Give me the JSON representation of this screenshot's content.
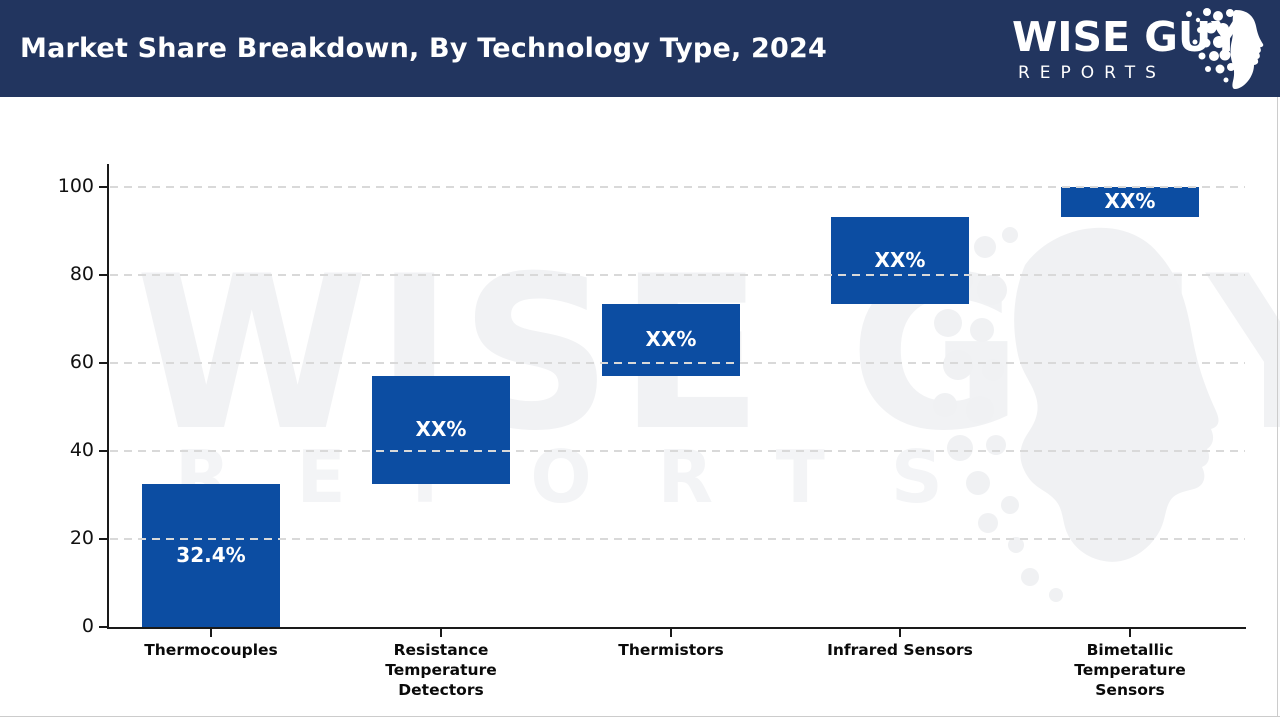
{
  "colors": {
    "header_bg": "#22355f",
    "bar": "#0c4da2",
    "grid": "#d9d9d9",
    "axis": "#1a1a1a",
    "bar_label_text": "#ffffff",
    "watermark": "#f1f2f4",
    "page_border": "#cccccc"
  },
  "header": {
    "title": "Market Share Breakdown, By Technology Type, 2024",
    "logo": {
      "line1": "WISE GUY",
      "line2": "REPORTS"
    }
  },
  "watermark": {
    "line1": "WISE GUY",
    "line2": "REPORTS"
  },
  "chart_data": {
    "type": "bar",
    "subtype": "waterfall",
    "title": "Market Share Breakdown, By Technology Type, 2024",
    "xlabel": "",
    "ylabel": "",
    "ylim": [
      0,
      105
    ],
    "yticks": [
      0,
      20,
      40,
      60,
      80,
      100
    ],
    "grid": "dashed-horizontal",
    "legend": "none",
    "bar_color": "#0c4da2",
    "categories": [
      "Thermocouples",
      "Resistance\nTemperature\nDetectors",
      "Thermistors",
      "Infrared Sensors",
      "Bimetallic\nTemperature\nSensors"
    ],
    "bars": [
      {
        "category": "Thermocouples",
        "start": 0,
        "end": 32.4,
        "size": 32.4,
        "label": "32.4%"
      },
      {
        "category": "Resistance Temperature Detectors",
        "start": 32.4,
        "end": 57,
        "size": 24.6,
        "label": "XX%"
      },
      {
        "category": "Thermistors",
        "start": 57,
        "end": 73.3,
        "size": 16.3,
        "label": "XX%"
      },
      {
        "category": "Infrared Sensors",
        "start": 73.3,
        "end": 93.2,
        "size": 19.9,
        "label": "XX%"
      },
      {
        "category": "Bimetallic Temperature Sensors",
        "start": 93.2,
        "end": 100,
        "size": 6.8,
        "label": "XX%"
      }
    ]
  }
}
